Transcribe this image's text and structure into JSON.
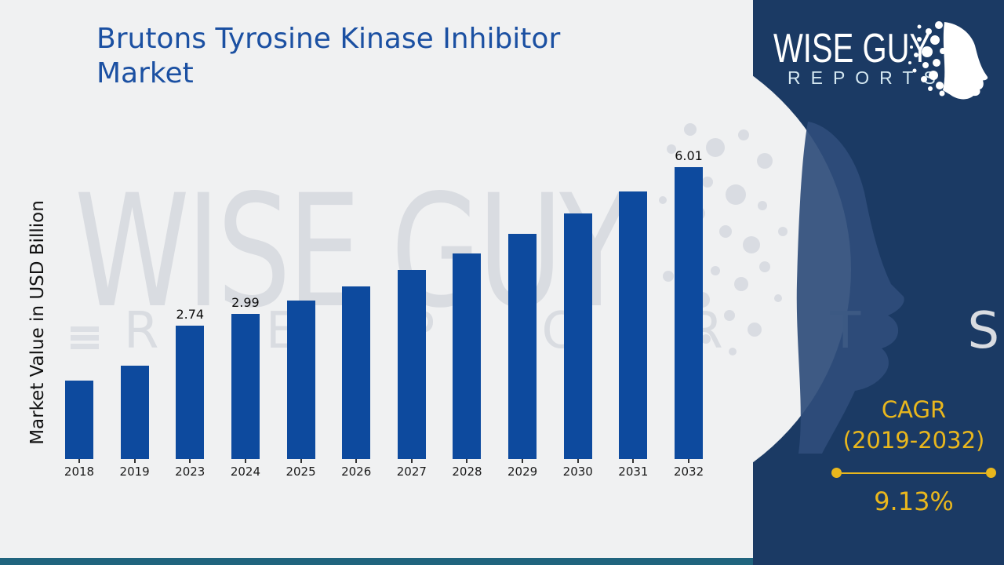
{
  "page": {
    "background": "#f0f1f2",
    "bottom_strip_color": "#20647e"
  },
  "header": {
    "title": "Brutons Tyrosine Kinase Inhibitor Market",
    "title_color": "#1b50a2"
  },
  "watermark": {
    "line1": "WISE GUY",
    "line2": "R E P O R T S",
    "color": "#d9dce1"
  },
  "chart_data": {
    "type": "bar",
    "title": "Brutons Tyrosine Kinase Inhibitor Market",
    "xlabel": "",
    "ylabel": "Market Value in USD Billion",
    "unit": "USD Billion",
    "categories": [
      "2018",
      "2019",
      "2023",
      "2024",
      "2025",
      "2026",
      "2027",
      "2028",
      "2029",
      "2030",
      "2031",
      "2032"
    ],
    "values": [
      1.62,
      1.93,
      2.74,
      2.99,
      3.26,
      3.56,
      3.89,
      4.24,
      4.63,
      5.05,
      5.51,
      6.01
    ],
    "data_labels": {
      "2023": "2.74",
      "2024": "2.99",
      "2032": "6.01"
    },
    "bar_color": "#0d4a9e",
    "ylim": [
      0,
      6.6
    ],
    "grid": false,
    "legend": "none"
  },
  "sidebar": {
    "background": "#1b3a64",
    "face_color": "#2f4d7b",
    "logo_line1": "WISE GUY",
    "logo_line2": "REPORTS",
    "cagr_label": "CAGR",
    "cagr_period": "(2019-2032)",
    "cagr_value": "9.13%",
    "accent_color": "#e9b71d"
  }
}
